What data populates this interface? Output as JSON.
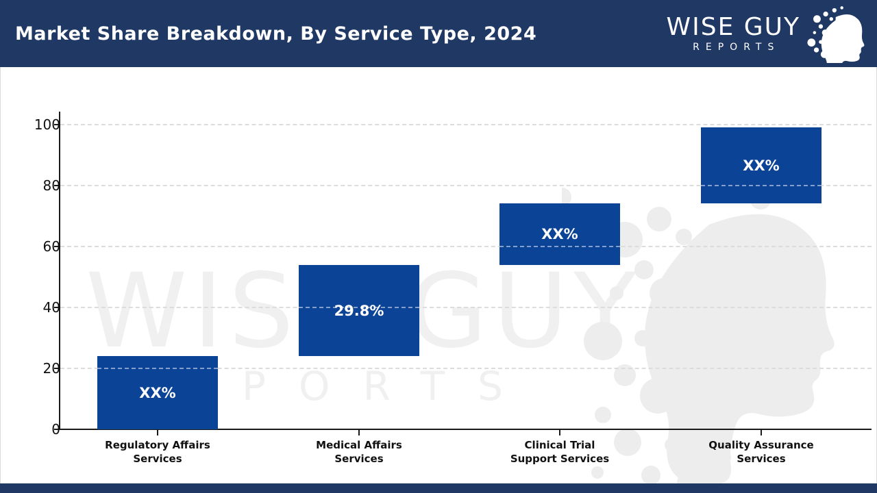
{
  "header": {
    "title": "Market Share Breakdown, By Service Type, 2024",
    "logo": {
      "line1": "WISE GUY",
      "line2": "REPORTS"
    }
  },
  "watermark": {
    "line1": "WISE GUY",
    "line2": "REPORTS"
  },
  "colors": {
    "header_bg": "#1f3864",
    "bar": "#0b4397",
    "axis": "#1a1a1a",
    "grid": "#dcdcdc",
    "watermark": "#f0f0f0"
  },
  "chart_data": {
    "type": "bar",
    "subtype": "waterfall",
    "title": "Market Share Breakdown, By Service Type, 2024",
    "xlabel": "",
    "ylabel": "",
    "ylim": [
      0,
      105
    ],
    "yticks": [
      0,
      20,
      40,
      60,
      80,
      100
    ],
    "grid": "horizontal-dashed",
    "legend": "none",
    "categories": [
      [
        "Regulatory Affairs",
        "Services"
      ],
      [
        "Medical Affairs",
        "Services"
      ],
      [
        "Clinical Trial",
        "Support Services"
      ],
      [
        "Quality Assurance",
        "Services"
      ]
    ],
    "segments": [
      {
        "start": 0,
        "end": 24,
        "label": "XX%"
      },
      {
        "start": 24,
        "end": 53.8,
        "label": "29.8%"
      },
      {
        "start": 53.8,
        "end": 74,
        "label": "XX%"
      },
      {
        "start": 74,
        "end": 99,
        "label": "XX%"
      }
    ]
  }
}
